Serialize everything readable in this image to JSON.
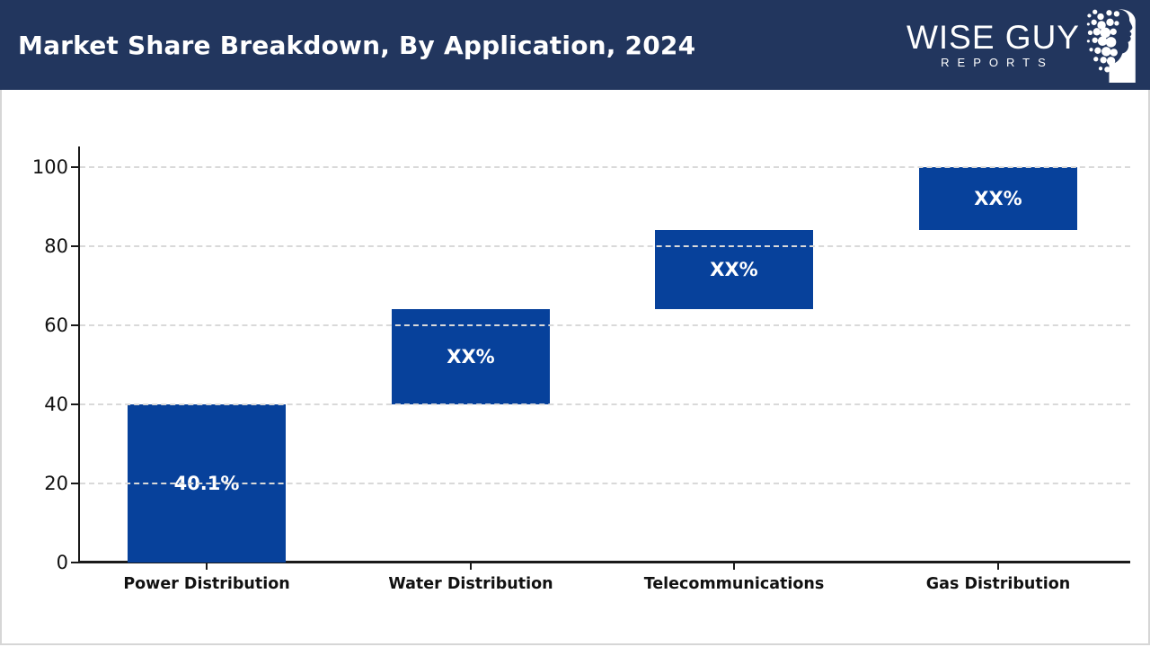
{
  "header": {
    "title": "Market Share Breakdown, By Application, 2024",
    "bg_color": "#22365E",
    "logo": {
      "line1": "WISE GUY",
      "line2": "REPORTS",
      "face_icon": "dotted-face-profile"
    }
  },
  "watermark": {
    "line1": "WISE GUY",
    "line2": "REPORTS",
    "face_icon": "dotted-face-profile"
  },
  "chart_data": {
    "type": "bar",
    "subtype": "waterfall-floating-bars",
    "title": "Market Share Breakdown, By Application, 2024",
    "categories": [
      "Power Distribution",
      "Water Distribution",
      "Telecommunications",
      "Gas Distribution"
    ],
    "bars": [
      {
        "category": "Power Distribution",
        "start": 0,
        "end": 40.1,
        "label": "40.1%"
      },
      {
        "category": "Water Distribution",
        "start": 40.1,
        "end": 64,
        "label": "XX%"
      },
      {
        "category": "Telecommunications",
        "start": 64,
        "end": 84,
        "label": "XX%"
      },
      {
        "category": "Gas Distribution",
        "start": 84,
        "end": 100,
        "label": "XX%"
      }
    ],
    "xlabel": "",
    "ylabel": "",
    "ylim": [
      0,
      105
    ],
    "yticks": [
      0,
      20,
      40,
      60,
      80,
      100
    ],
    "grid": "horizontal dashed, drawn above bars",
    "legend": "none",
    "bar_color": "#07419B",
    "bar_label_color": "#ffffff",
    "axis_color": "#1a1a1a",
    "gridline_color": "#d9d9d9"
  }
}
